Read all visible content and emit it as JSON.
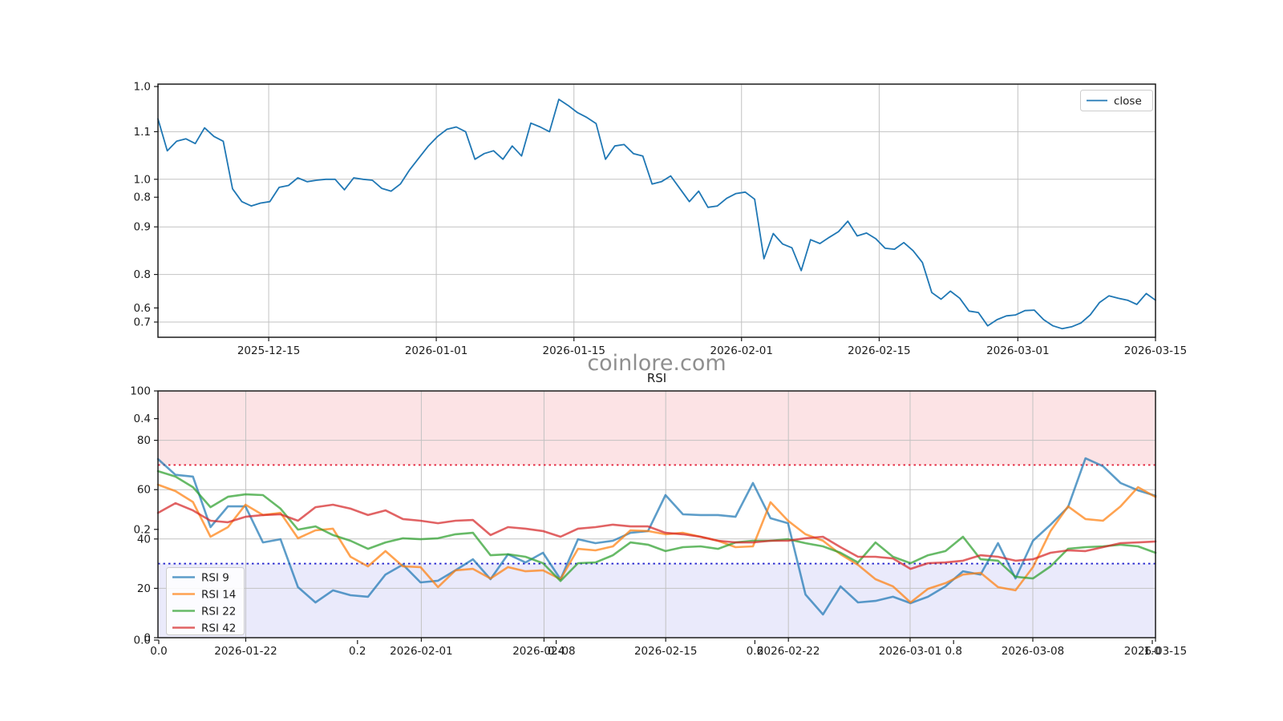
{
  "watermark": "coinlore.com",
  "chart_data": [
    {
      "type": "line",
      "panel": "price",
      "legend_position": "upper right",
      "grid": true,
      "ylim": [
        0.668,
        1.2
      ],
      "y_ticks": [
        {
          "label": "1.1",
          "v": 1.1
        },
        {
          "label": "1.0",
          "v": 1.0
        },
        {
          "label": "0.9",
          "v": 0.9
        },
        {
          "label": "0.8",
          "v": 0.8
        },
        {
          "label": "0.7",
          "v": 0.7
        }
      ],
      "x_ticks": [
        {
          "label": "2025-12-15",
          "f": 0.111
        },
        {
          "label": "2026-01-01",
          "f": 0.279
        },
        {
          "label": "2026-01-15",
          "f": 0.417
        },
        {
          "label": "2026-02-01",
          "f": 0.585
        },
        {
          "label": "2026-02-15",
          "f": 0.723
        },
        {
          "label": "2026-03-01",
          "f": 0.862
        },
        {
          "label": "2026-03-15",
          "f": 1.0
        }
      ],
      "series": [
        {
          "name": "close",
          "color": "#1f77b4",
          "width": 1.8,
          "values": [
            1.127,
            1.06,
            1.08,
            1.085,
            1.075,
            1.108,
            1.09,
            1.08,
            0.98,
            0.953,
            0.944,
            0.95,
            0.953,
            0.983,
            0.987,
            1.003,
            0.995,
            0.998,
            1.0,
            1.0,
            0.978,
            1.003,
            1.0,
            0.998,
            0.981,
            0.975,
            0.99,
            1.02,
            1.045,
            1.07,
            1.09,
            1.105,
            1.11,
            1.1,
            1.042,
            1.054,
            1.06,
            1.042,
            1.07,
            1.049,
            1.118,
            1.11,
            1.1,
            1.168,
            1.155,
            1.14,
            1.13,
            1.117,
            1.042,
            1.07,
            1.073,
            1.054,
            1.049,
            0.99,
            0.995,
            1.007,
            0.98,
            0.953,
            0.975,
            0.941,
            0.944,
            0.96,
            0.97,
            0.973,
            0.958,
            0.833,
            0.886,
            0.864,
            0.856,
            0.808,
            0.873,
            0.865,
            0.878,
            0.89,
            0.912,
            0.881,
            0.887,
            0.875,
            0.855,
            0.853,
            0.867,
            0.85,
            0.825,
            0.762,
            0.748,
            0.765,
            0.75,
            0.723,
            0.72,
            0.692,
            0.705,
            0.713,
            0.715,
            0.724,
            0.725,
            0.705,
            0.692,
            0.686,
            0.69,
            0.698,
            0.715,
            0.741,
            0.755,
            0.75,
            0.746,
            0.737,
            0.76,
            0.746
          ]
        }
      ]
    },
    {
      "type": "line",
      "panel": "rsi",
      "title": "RSI",
      "legend_position": "lower left",
      "grid": true,
      "ylim": [
        0,
        100
      ],
      "y_ticks": [
        {
          "label": "100",
          "v": 100
        },
        {
          "label": "80",
          "v": 80
        },
        {
          "label": "60",
          "v": 60
        },
        {
          "label": "40",
          "v": 40
        },
        {
          "label": "20",
          "v": 20
        },
        {
          "label": "0",
          "v": 0
        }
      ],
      "x_ticks": [
        {
          "label": "2026-01-22",
          "f": 0.088
        },
        {
          "label": "2026-02-01",
          "f": 0.264
        },
        {
          "label": "2026-02-08",
          "f": 0.387
        },
        {
          "label": "2026-02-15",
          "f": 0.509
        },
        {
          "label": "2026-02-22",
          "f": 0.632
        },
        {
          "label": "2026-03-01",
          "f": 0.754
        },
        {
          "label": "2026-03-08",
          "f": 0.877
        },
        {
          "label": "2026-03-15",
          "f": 1.0
        }
      ],
      "bands": [
        {
          "name": "overbought-band",
          "from": 70,
          "to": 100,
          "color": "rgba(228,26,43,0.12)"
        },
        {
          "name": "oversold-band",
          "from": 0,
          "to": 30,
          "color": "rgba(47,47,211,0.10)"
        }
      ],
      "threshold_lines": [
        {
          "name": "overbought-line",
          "v": 70,
          "color": "#e3263d"
        },
        {
          "name": "oversold-line",
          "v": 30,
          "color": "#2526cf"
        }
      ],
      "series": [
        {
          "name": "RSI 9",
          "color": "rgba(31,119,180,0.72)",
          "width": 2.6,
          "values": [
            72.4,
            66,
            65.3,
            44.8,
            53.2,
            53.2,
            38.6,
            39.9,
            20.5,
            14.3,
            19.2,
            17.2,
            16.6,
            25.6,
            29.6,
            22.4,
            23.1,
            27.3,
            31.8,
            23.7,
            33.8,
            30.5,
            34.4,
            23.7,
            39.9,
            38.3,
            39.3,
            42.5,
            43.2,
            57.8,
            50,
            49.7,
            49.7,
            49,
            62.7,
            48.4,
            46.4,
            17.5,
            9.4,
            20.8,
            14.3,
            14.9,
            16.6,
            14,
            16.6,
            20.8,
            26.9,
            25.6,
            38.3,
            24,
            39.3,
            45.8,
            52.9,
            72.7,
            69.5,
            62.7,
            59.7,
            57.5
          ]
        },
        {
          "name": "RSI 14",
          "color": "rgba(255,127,14,0.72)",
          "width": 2.6,
          "values": [
            62,
            59.4,
            55,
            40.9,
            44.8,
            53.9,
            49.7,
            50.6,
            40.3,
            43.5,
            44.2,
            32.8,
            28.9,
            35.1,
            28.9,
            28.6,
            20.5,
            27.3,
            27.9,
            24,
            28.6,
            26.9,
            27.3,
            23.7,
            36,
            35.4,
            37,
            43.5,
            43.2,
            41.9,
            42.5,
            40.9,
            39.3,
            36.7,
            37,
            54.9,
            47.4,
            41.9,
            39.3,
            33.8,
            29.5,
            23.7,
            20.8,
            14.3,
            19.8,
            22.1,
            25.6,
            26.3,
            20.5,
            19.2,
            28.6,
            43.2,
            53.2,
            48.1,
            47.4,
            53.2,
            61,
            57
          ]
        },
        {
          "name": "RSI 22",
          "color": "rgba(44,160,44,0.72)",
          "width": 2.6,
          "values": [
            67.5,
            65.3,
            61,
            52.9,
            57.1,
            58.1,
            57.8,
            52.3,
            43.8,
            45.1,
            41.6,
            39.3,
            36,
            38.6,
            40.3,
            39.9,
            40.3,
            41.9,
            42.5,
            33.4,
            33.8,
            32.8,
            30.2,
            23,
            30.2,
            30.5,
            33.4,
            38.6,
            37.7,
            35.1,
            36.7,
            37,
            36,
            38.6,
            39.3,
            39.3,
            39.9,
            38.3,
            37,
            34.4,
            30.5,
            38.6,
            32.8,
            30.2,
            33.4,
            35.1,
            40.9,
            31.8,
            31.2,
            24.7,
            24,
            28.9,
            36,
            36.7,
            37,
            37.7,
            37,
            34.4
          ]
        },
        {
          "name": "RSI 42",
          "color": "rgba(214,39,40,0.72)",
          "width": 2.6,
          "values": [
            50.6,
            54.5,
            51.6,
            47.4,
            46.8,
            49,
            49.7,
            50,
            47.4,
            52.9,
            53.9,
            52.3,
            49.7,
            51.6,
            48.1,
            47.4,
            46.4,
            47.4,
            47.7,
            41.6,
            44.8,
            44.2,
            43.2,
            40.9,
            44.2,
            44.8,
            45.8,
            45.1,
            45.1,
            42.5,
            41.9,
            40.9,
            39.3,
            38.6,
            38.6,
            39.3,
            39.3,
            40.3,
            40.9,
            36.7,
            32.8,
            32.8,
            32.1,
            27.9,
            30.2,
            30.5,
            31.2,
            33.4,
            32.8,
            31.2,
            31.8,
            34.4,
            35.4,
            35.1,
            36.7,
            38.3,
            38.6,
            39
          ]
        }
      ]
    }
  ],
  "ghost_axis": {
    "y_ticks": [
      {
        "label": "1.0",
        "f": 0.0
      },
      {
        "label": "0.8",
        "f": 0.2
      },
      {
        "label": "0.6",
        "f": 0.4
      },
      {
        "label": "0.4",
        "f": 0.6
      },
      {
        "label": "0.2",
        "f": 0.8
      },
      {
        "label": "0.0",
        "f": 1.0
      }
    ],
    "x_ticks": [
      {
        "label": "0.0",
        "f": 0.0
      },
      {
        "label": "0.2",
        "f": 0.2
      },
      {
        "label": "0.4",
        "f": 0.4
      },
      {
        "label": "0.6",
        "f": 0.6
      },
      {
        "label": "0.8",
        "f": 0.8
      },
      {
        "label": "1.0",
        "f": 1.0
      }
    ]
  },
  "style": {
    "grid_color": "#c2c2c2",
    "spine_color": "#1c1c1c",
    "tick_color": "#1c1c1c"
  }
}
